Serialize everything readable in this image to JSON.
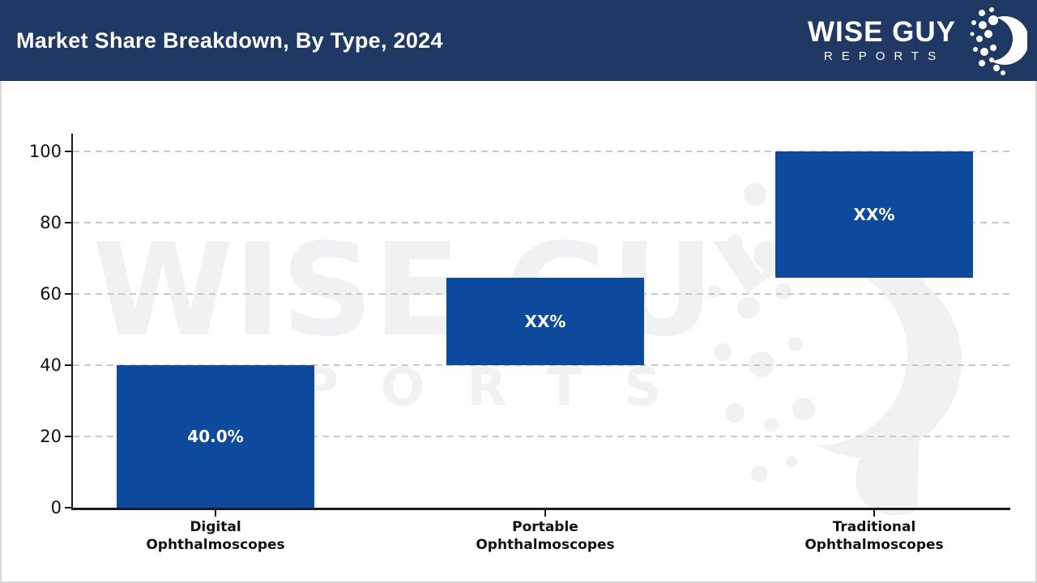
{
  "header": {
    "title": "Market Share Breakdown, By Type, 2024",
    "logo": {
      "name_line": "WISE GUY",
      "reports_line": "REPORTS"
    }
  },
  "watermark": {
    "name_line": "WISE GUY",
    "reports_line": "REPORTS"
  },
  "colors": {
    "header_bg": "#1f3864",
    "bar": "#0d4a9e",
    "grid": "#c9c9c9",
    "axis": "#1a1a1a",
    "bar_label": "#ffffff",
    "watermark": "#f1f1f4",
    "panel_border": "#d8d8d8"
  },
  "chart_data": {
    "type": "bar",
    "variant": "stacked-waterfall market share segments",
    "title": "Market Share Breakdown, By Type, 2024",
    "categories": [
      [
        "Digital",
        "Ophthalmoscopes"
      ],
      [
        "Portable",
        "Ophthalmoscopes"
      ],
      [
        "Traditional",
        "Ophthalmoscopes"
      ]
    ],
    "segments": [
      {
        "category": "Digital Ophthalmoscopes",
        "start": 0,
        "end": 40,
        "label": "40.0%"
      },
      {
        "category": "Portable Ophthalmoscopes",
        "start": 40,
        "end": 64.5,
        "label": "XX%"
      },
      {
        "category": "Traditional Ophthalmoscopes",
        "start": 64.5,
        "end": 100,
        "label": "XX%"
      }
    ],
    "xlabel": "",
    "ylabel": "",
    "ylim": [
      0,
      100
    ],
    "yticks": [
      0,
      20,
      40,
      60,
      80,
      100
    ],
    "grid": "horizontal dashed",
    "legend": "none"
  }
}
